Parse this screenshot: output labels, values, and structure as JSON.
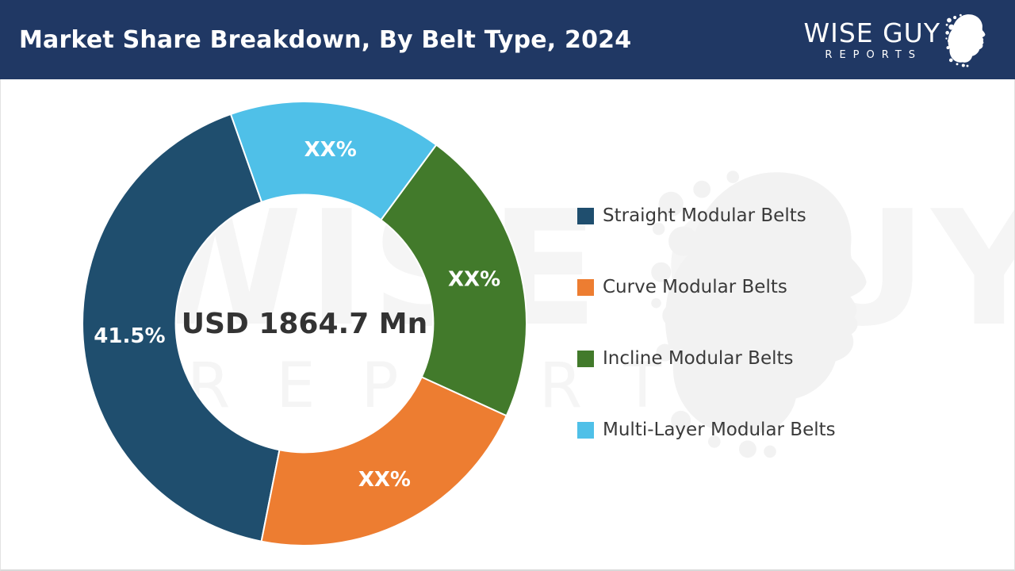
{
  "header": {
    "title": "Market Share Breakdown, By Belt Type, 2024",
    "bg_color": "#203864",
    "logo": {
      "name": "WISE GUY",
      "tagline": "REPORTS"
    }
  },
  "watermark": {
    "line1": "WISE GUY",
    "line2": "REPORTS"
  },
  "chart_data": {
    "type": "pie",
    "subtype": "donut",
    "title": "Market Share Breakdown, By Belt Type, 2024",
    "center_label": "USD 1864.7 Mn",
    "start_angle_deg": 109.4,
    "direction": "counterclockwise",
    "inner_radius_ratio": 0.58,
    "legend_position": "right",
    "segments": [
      {
        "name": "Straight Modular Belts",
        "value": 41.5,
        "label": "41.5%",
        "color": "#1f4e6e"
      },
      {
        "name": "Curve Modular Belts",
        "value": 21.3,
        "label": "XX%",
        "color": "#ed7d31"
      },
      {
        "name": "Incline Modular Belts",
        "value": 21.7,
        "label": "XX%",
        "color": "#427a2b"
      },
      {
        "name": "Multi-Layer Modular Belts",
        "value": 15.5,
        "label": "XX%",
        "color": "#4fc0e8"
      }
    ],
    "colors": {
      "slice_label_text": "#ffffff",
      "center_text": "#333333",
      "legend_text": "#3a3a3a"
    }
  }
}
